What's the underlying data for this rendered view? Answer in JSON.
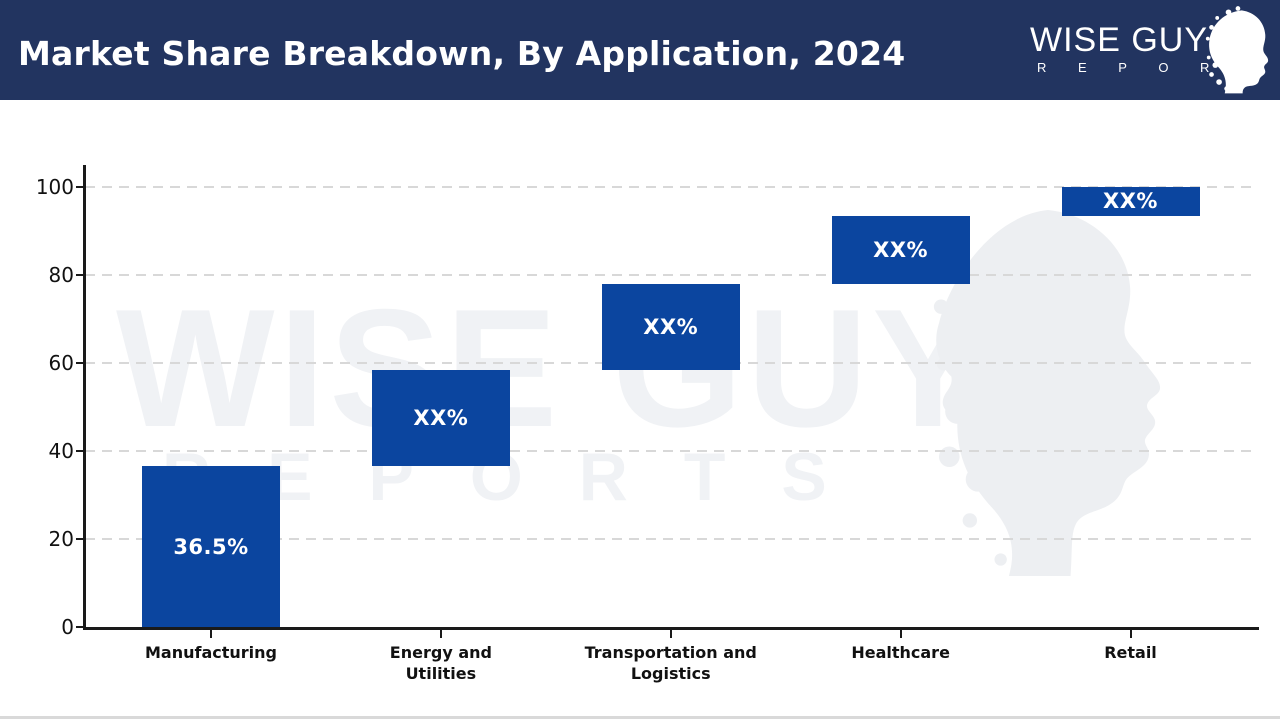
{
  "header": {
    "title": "Market Share Breakdown, By Application, 2024",
    "bg_color": "#223460",
    "logo": {
      "wordmark": "WISE GUY",
      "subtitle": "R E P O R T S"
    }
  },
  "watermark": {
    "line1": "WISE GUY",
    "line2": "REPORTS"
  },
  "chart_data": {
    "type": "bar",
    "subtype": "waterfall",
    "title": "Market Share Breakdown, By Application, 2024",
    "xlabel": "",
    "ylabel": "",
    "ylim": [
      0,
      105
    ],
    "yticks": [
      0,
      20,
      40,
      60,
      80,
      100
    ],
    "grid": true,
    "grid_style": "dashed",
    "grid_color": "#d8d8d8",
    "bar_color": "#0b459f",
    "label_color": "#ffffff",
    "categories": [
      {
        "name": "Manufacturing",
        "lines": [
          "Manufacturing"
        ]
      },
      {
        "name": "Energy and Utilities",
        "lines": [
          "Energy and",
          "Utilities"
        ]
      },
      {
        "name": "Transportation and Logistics",
        "lines": [
          "Transportation and",
          "Logistics"
        ]
      },
      {
        "name": "Healthcare",
        "lines": [
          "Healthcare"
        ]
      },
      {
        "name": "Retail",
        "lines": [
          "Retail"
        ]
      }
    ],
    "segments": [
      {
        "category": "Manufacturing",
        "start": 0,
        "end": 36.5,
        "label": "36.5%"
      },
      {
        "category": "Energy and Utilities",
        "start": 36.5,
        "end": 58.5,
        "label": "XX%"
      },
      {
        "category": "Transportation and Logistics",
        "start": 58.5,
        "end": 78,
        "label": "XX%"
      },
      {
        "category": "Healthcare",
        "start": 78,
        "end": 93.5,
        "label": "XX%"
      },
      {
        "category": "Retail",
        "start": 93.5,
        "end": 100,
        "label": "XX%"
      }
    ]
  }
}
